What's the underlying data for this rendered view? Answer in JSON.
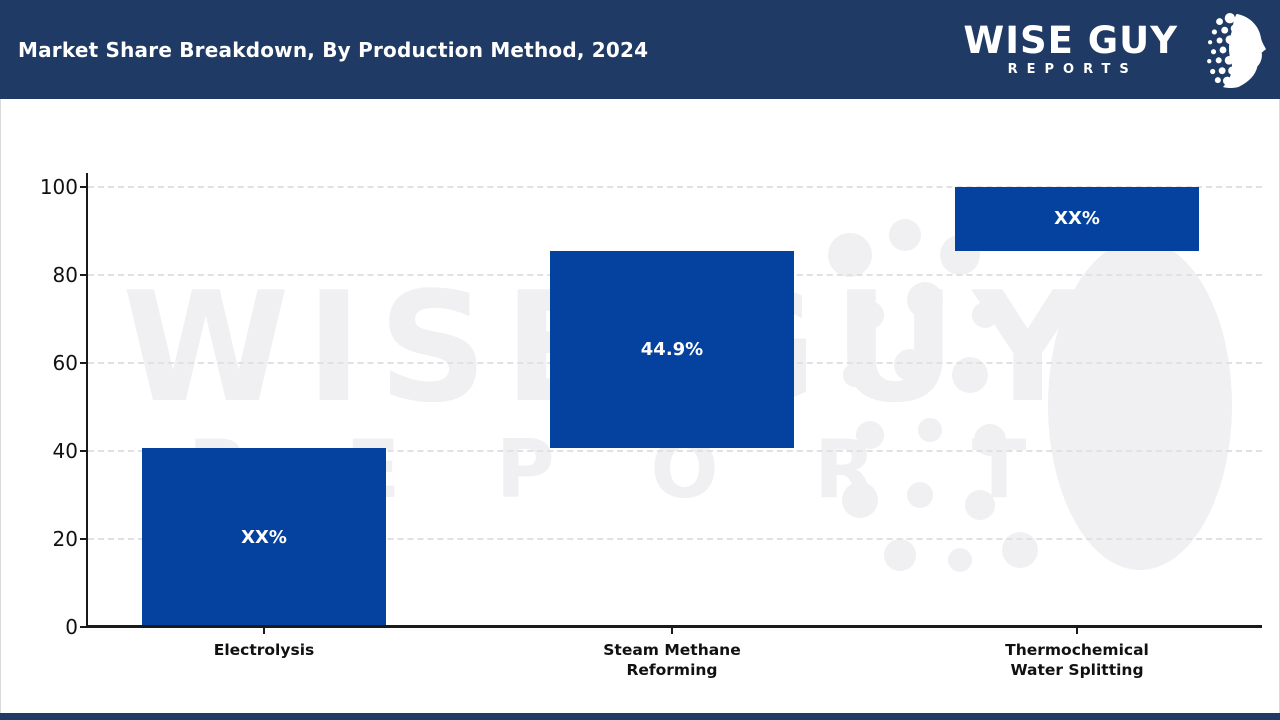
{
  "header": {
    "title": "Market Share Breakdown, By Production Method, 2024",
    "logo": {
      "line1": "WISE GUY",
      "line2": "REPORTS"
    }
  },
  "watermark": {
    "line1": "WISE GUY",
    "line2": "R E P O R T S"
  },
  "chart_data": {
    "type": "bar",
    "style": "waterfall-floating-bars",
    "title": "Market Share Breakdown, By Production Method, 2024",
    "categories": [
      [
        "Electrolysis"
      ],
      [
        "Steam Methane",
        "Reforming"
      ],
      [
        "Thermochemical",
        "Water Splitting"
      ]
    ],
    "bars": [
      {
        "label": "XX%",
        "from": 0,
        "to": 40.6
      },
      {
        "label": "44.9%",
        "from": 40.6,
        "to": 85.5
      },
      {
        "label": "XX%",
        "from": 85.5,
        "to": 100
      }
    ],
    "yticks": [
      0,
      20,
      40,
      60,
      80,
      100
    ],
    "ylim": [
      0,
      100
    ],
    "xlabel": "",
    "ylabel": "",
    "grid": "horizontal-dashed",
    "legend": "none",
    "bar_color": "#05419E",
    "bar_label_color": "#FFFFFF"
  },
  "colors": {
    "header_bg": "#1F3A64",
    "footer_bg": "#1F3A64",
    "bar": "#05419E",
    "grid": "#E1E1E3",
    "axis": "#1A1A1A",
    "watermark": "#F0F0F2",
    "title_text": "#FFFFFF",
    "tick_text": "#111111"
  }
}
